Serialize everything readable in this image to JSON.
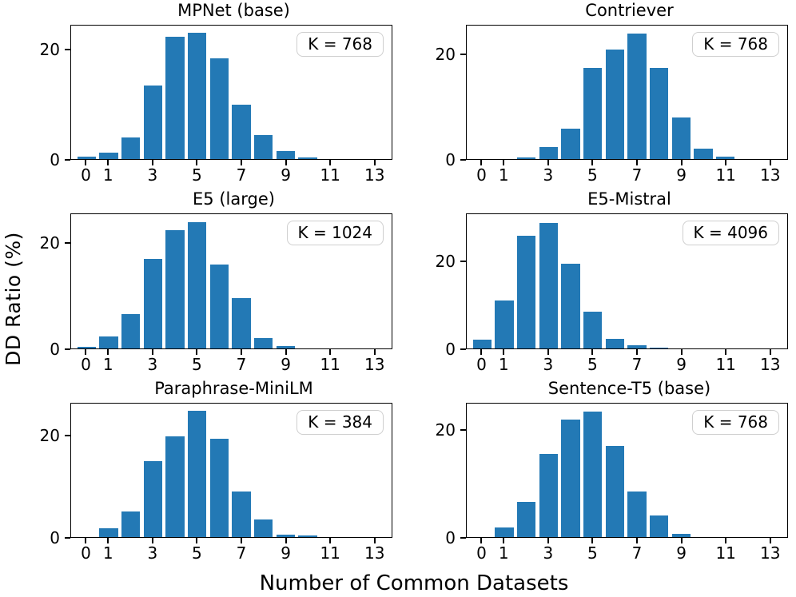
{
  "figure": {
    "ylabel": "DD Ratio (%)",
    "xlabel": "Number of Common Datasets",
    "bar_color": "#2379b5",
    "x_ticks": [
      0,
      1,
      3,
      5,
      7,
      9,
      11,
      13
    ],
    "y_ticks": [
      0,
      20
    ],
    "x_range": [
      -0.7,
      13.8
    ]
  },
  "chart_data": [
    {
      "type": "bar",
      "title": "MPNet (base)",
      "annotation": "K = 768",
      "x": [
        0,
        1,
        2,
        3,
        4,
        5,
        6,
        7,
        8,
        9,
        10
      ],
      "values": [
        0.5,
        1.2,
        4.0,
        13.5,
        22.5,
        23.2,
        18.5,
        10.0,
        4.5,
        1.5,
        0.4
      ],
      "ylim": [
        0,
        24.5
      ]
    },
    {
      "type": "bar",
      "title": "Contriever",
      "annotation": "K = 768",
      "x": [
        2,
        3,
        4,
        5,
        6,
        7,
        8,
        9,
        10,
        11
      ],
      "values": [
        0.4,
        2.3,
        5.8,
        17.5,
        21.0,
        24.0,
        17.5,
        8.0,
        2.0,
        0.5
      ],
      "ylim": [
        0,
        25.5
      ]
    },
    {
      "type": "bar",
      "title": "E5 (large)",
      "annotation": "K = 1024",
      "x": [
        0,
        1,
        2,
        3,
        4,
        5,
        6,
        7,
        8,
        9
      ],
      "values": [
        0.3,
        2.2,
        6.5,
        17.0,
        22.5,
        24.0,
        16.0,
        9.5,
        2.0,
        0.4
      ],
      "ylim": [
        0,
        25.5
      ]
    },
    {
      "type": "bar",
      "title": "E5-Mistral",
      "annotation": "K = 4096",
      "x": [
        0,
        1,
        2,
        3,
        4,
        5,
        6,
        7,
        8
      ],
      "values": [
        2.0,
        11.0,
        26.0,
        29.0,
        19.5,
        8.5,
        2.2,
        0.6,
        0.2
      ],
      "ylim": [
        0,
        31
      ]
    },
    {
      "type": "bar",
      "title": "Paraphrase-MiniLM",
      "annotation": "K = 384",
      "x": [
        1,
        2,
        3,
        4,
        5,
        6,
        7,
        8,
        9,
        10
      ],
      "values": [
        1.8,
        5.0,
        15.0,
        20.0,
        25.0,
        19.5,
        9.0,
        3.5,
        0.4,
        0.3
      ],
      "ylim": [
        0,
        26.5
      ]
    },
    {
      "type": "bar",
      "title": "Sentence-T5 (base)",
      "annotation": "K = 768",
      "x": [
        1,
        2,
        3,
        4,
        5,
        6,
        7,
        8,
        9
      ],
      "values": [
        1.8,
        6.5,
        15.5,
        22.0,
        23.5,
        17.0,
        8.5,
        4.0,
        0.6
      ],
      "ylim": [
        0,
        25
      ]
    }
  ]
}
